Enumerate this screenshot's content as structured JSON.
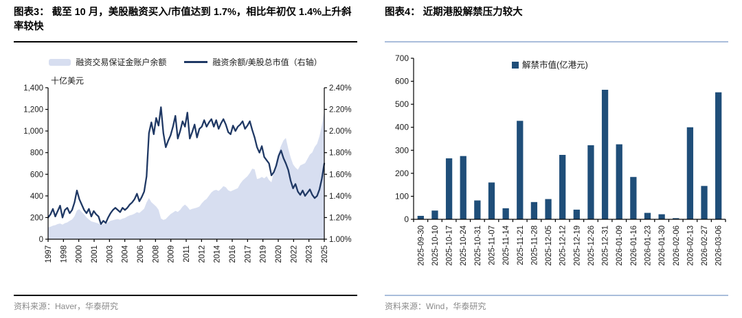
{
  "left_panel": {
    "title": "图表3：  截至 10 月，美股融资买入/市值达到 1.7%，相比年初仅 1.4%上升斜率较快",
    "source": "资料来源：Haver，华泰研究"
  },
  "right_panel": {
    "title": "图表4：  近期港股解禁压力较大",
    "source": "资料来源：Wind，华泰研究"
  },
  "colors": {
    "line": "#1f3864",
    "area": "#d7def0",
    "bar": "#1f4e79",
    "axis": "#000000",
    "tick_text": "#1a1a1a",
    "rule_blue": "#a9bddb",
    "footer_text": "#8a8a8a"
  },
  "chart_data": [
    {
      "type": "line",
      "title": "美股融资交易保证金账户余额与融资余额/美股总市值",
      "x_start_year": 1997,
      "x_step_years": 0.25,
      "x_tick_labels": [
        "1997",
        "1998",
        "2000",
        "2001",
        "2003",
        "2004",
        "2006",
        "2008",
        "2009",
        "2011",
        "2012",
        "2014",
        "2016",
        "2017",
        "2019",
        "2020",
        "2022",
        "2023",
        "2025"
      ],
      "left_axis": {
        "label": "十亿美元",
        "min": 0,
        "max": 1400,
        "step": 200
      },
      "right_axis": {
        "min": 1.0,
        "max": 2.4,
        "step": 0.2,
        "format": "percent"
      },
      "grid": false,
      "legend_position": "top",
      "series": [
        {
          "name": "融资交易保证金账户余额",
          "type": "area",
          "axis": "left",
          "values": [
            110,
            115,
            125,
            130,
            140,
            145,
            135,
            148,
            155,
            170,
            182,
            212,
            265,
            278,
            252,
            230,
            202,
            182,
            165,
            158,
            152,
            145,
            134,
            140,
            146,
            156,
            170,
            176,
            182,
            186,
            180,
            190,
            196,
            210,
            220,
            226,
            236,
            250,
            242,
            262,
            282,
            340,
            380,
            342,
            322,
            302,
            272,
            192,
            178,
            186,
            210,
            232,
            246,
            262,
            252,
            272,
            302,
            320,
            300,
            272,
            280,
            286,
            292,
            302,
            332,
            356,
            372,
            402,
            432,
            450,
            456,
            446,
            466,
            490,
            480,
            452,
            442,
            452,
            462,
            472,
            512,
            542,
            562,
            582,
            612,
            652,
            646,
            556,
            562,
            576,
            562,
            582,
            546,
            526,
            622,
            722,
            802,
            862,
            912,
            936,
            836,
            756,
            692,
            662,
            642,
            682,
            692,
            702,
            742,
            782,
            802,
            852,
            882,
            952,
            1052,
            1190
          ]
        },
        {
          "name": "融资余额/美股总市值（右轴）",
          "type": "line",
          "axis": "right",
          "values": [
            1.2,
            1.23,
            1.28,
            1.21,
            1.26,
            1.31,
            1.2,
            1.27,
            1.29,
            1.24,
            1.27,
            1.34,
            1.45,
            1.37,
            1.32,
            1.27,
            1.24,
            1.28,
            1.21,
            1.26,
            1.23,
            1.21,
            1.14,
            1.17,
            1.15,
            1.2,
            1.24,
            1.27,
            1.29,
            1.27,
            1.25,
            1.29,
            1.27,
            1.29,
            1.32,
            1.34,
            1.37,
            1.42,
            1.35,
            1.39,
            1.44,
            1.58,
            1.98,
            2.08,
            1.97,
            2.12,
            2.05,
            2.22,
            1.98,
            1.85,
            1.91,
            1.96,
            2.04,
            2.14,
            1.93,
            2.0,
            2.09,
            2.04,
            2.17,
            1.93,
            1.99,
            2.06,
            1.94,
            2.02,
            2.04,
            2.1,
            2.04,
            2.08,
            2.11,
            2.04,
            2.1,
            2.02,
            2.07,
            2.11,
            2.06,
            1.99,
            1.97,
            2.05,
            2.0,
            2.04,
            2.06,
            2.09,
            2.02,
            2.05,
            2.09,
            2.01,
            1.94,
            1.85,
            1.8,
            1.86,
            1.76,
            1.73,
            1.7,
            1.59,
            1.62,
            1.68,
            1.77,
            1.82,
            1.75,
            1.7,
            1.64,
            1.54,
            1.47,
            1.51,
            1.44,
            1.41,
            1.45,
            1.4,
            1.43,
            1.46,
            1.41,
            1.38,
            1.4,
            1.46,
            1.56,
            1.7
          ]
        }
      ]
    },
    {
      "type": "bar",
      "legend": "解禁市值(亿港元)",
      "categories": [
        "2025-09-30",
        "2025-10-10",
        "2025-10-17",
        "2025-10-24",
        "2025-10-31",
        "2025-11-07",
        "2025-11-14",
        "2025-11-21",
        "2025-11-28",
        "2025-12-05",
        "2025-12-12",
        "2025-12-19",
        "2025-12-26",
        "2025-12-31",
        "2026-01-09",
        "2026-01-16",
        "2026-01-23",
        "2026-01-30",
        "2026-02-06",
        "2026-02-13",
        "2026-02-27",
        "2026-03-06"
      ],
      "values": [
        15,
        38,
        265,
        275,
        82,
        160,
        48,
        428,
        75,
        88,
        280,
        42,
        322,
        563,
        326,
        184,
        28,
        22,
        5,
        400,
        145,
        552
      ],
      "ylim": [
        0,
        700
      ],
      "ystep": 100,
      "grid": false,
      "legend_position": "top-center"
    }
  ]
}
